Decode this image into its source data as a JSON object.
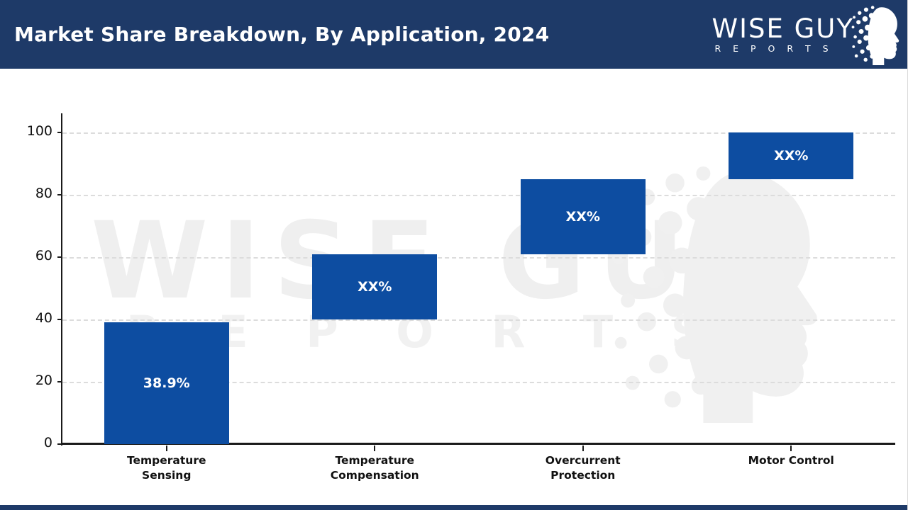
{
  "header": {
    "title": "Market Share Breakdown, By Application, 2024",
    "bg_color": "#1e3a68",
    "logo": {
      "wordmark": "WISE GUY",
      "subtext": "R E P O R T S"
    }
  },
  "watermark": {
    "line1": "WISE GUY",
    "line2": "R E P O R T S"
  },
  "chart_data": {
    "type": "bar",
    "subtype": "waterfall-stacked",
    "title": "Market Share Breakdown, By Application, 2024",
    "categories": [
      "Temperature Sensing",
      "Temperature Compensation",
      "Overcurrent Protection",
      "Motor Control"
    ],
    "bars": [
      {
        "category": "Temperature Sensing",
        "from": 0,
        "to": 39,
        "label": "38.9%"
      },
      {
        "category": "Temperature Compensation",
        "from": 40,
        "to": 61,
        "label": "XX%"
      },
      {
        "category": "Overcurrent Protection",
        "from": 61,
        "to": 85,
        "label": "XX%"
      },
      {
        "category": "Motor Control",
        "from": 85,
        "to": 100,
        "label": "XX%"
      }
    ],
    "xlabel": "",
    "ylabel": "",
    "ylim": [
      0,
      100
    ],
    "yticks": [
      0,
      20,
      40,
      60,
      80,
      100
    ],
    "grid": "horizontal-dashed",
    "legend": "none",
    "bar_color": "#0d4da1",
    "bar_label_color": "#ffffff",
    "grid_color": "#dcdcdc",
    "axis_color": "#1a1a1a"
  }
}
